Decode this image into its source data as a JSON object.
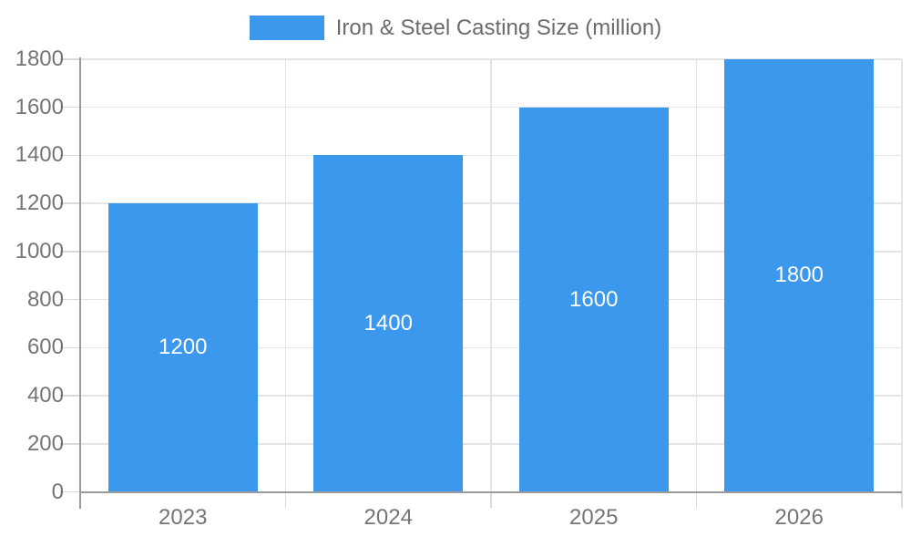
{
  "chart_data": {
    "type": "bar",
    "title": "",
    "legend": {
      "label": "Iron & Steel Casting Size (million)",
      "position": "top-center"
    },
    "categories": [
      "2023",
      "2024",
      "2025",
      "2026"
    ],
    "series": [
      {
        "name": "Iron & Steel Casting Size (million)",
        "values": [
          1200,
          1400,
          1600,
          1800
        ]
      }
    ],
    "data_labels": [
      "1200",
      "1400",
      "1600",
      "1800"
    ],
    "y_axis": {
      "min": 0,
      "max": 1800,
      "tick_step": 200,
      "tick_labels": [
        "0",
        "200",
        "400",
        "600",
        "800",
        "1000",
        "1200",
        "1400",
        "1600",
        "1800"
      ]
    },
    "x_axis": {
      "tick_labels": [
        "2023",
        "2024",
        "2025",
        "2026"
      ]
    },
    "grid": true,
    "colors": {
      "bar": "#3b98ec",
      "data_label_text": "#ffffff",
      "axis_label_text": "#757575",
      "legend_text": "#6b6b6b",
      "gridline": "#e4e4e4",
      "tick": "#d9d9d9",
      "axis_line": "#9b9b9b",
      "background": "#ffffff"
    }
  }
}
